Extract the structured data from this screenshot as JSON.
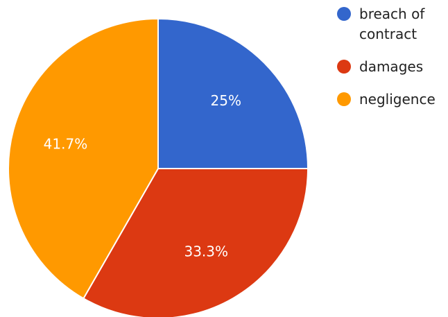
{
  "chart_data": {
    "type": "pie",
    "categories": [
      "breach of contract",
      "damages",
      "negligence"
    ],
    "values": [
      25,
      33.3,
      41.7
    ],
    "data_labels": [
      "25%",
      "33.3%",
      "41.7%"
    ],
    "colors": [
      "#3366cc",
      "#dc3912",
      "#ff9900"
    ],
    "legend": {
      "position": "top-right",
      "entries": [
        {
          "lines": [
            "breach of",
            "contract"
          ],
          "color": "#3366cc"
        },
        {
          "lines": [
            "damages"
          ],
          "color": "#dc3912"
        },
        {
          "lines": [
            "negligence"
          ],
          "color": "#ff9900"
        }
      ]
    },
    "start_angle_deg": 0,
    "direction": "clockwise"
  }
}
